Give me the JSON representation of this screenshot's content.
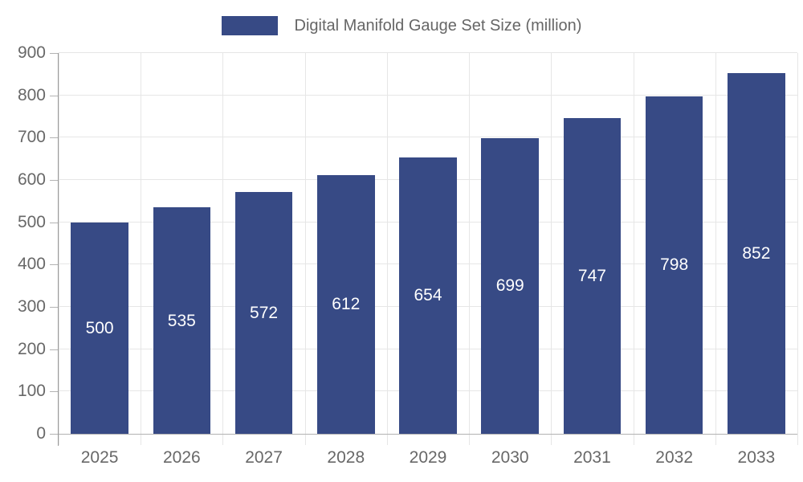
{
  "chart_data": {
    "type": "bar",
    "title": "",
    "legend_label": "Digital Manifold Gauge Set Size (million)",
    "legend_position": "top-center",
    "categories": [
      "2025",
      "2026",
      "2027",
      "2028",
      "2029",
      "2030",
      "2031",
      "2032",
      "2033"
    ],
    "series": [
      {
        "name": "Digital Manifold Gauge Set Size (million)",
        "values": [
          500,
          535,
          572,
          612,
          654,
          699,
          747,
          798,
          852
        ]
      }
    ],
    "bar_value_labels": [
      "500",
      "535",
      "572",
      "612",
      "654",
      "699",
      "747",
      "798",
      "852"
    ],
    "xlabel": "",
    "ylabel": "",
    "ylim": [
      0,
      900
    ],
    "ytick_step": 100,
    "yticks": [
      0,
      100,
      200,
      300,
      400,
      500,
      600,
      700,
      800,
      900
    ],
    "ytick_labels": [
      "0",
      "100",
      "200",
      "300",
      "400",
      "500",
      "600",
      "700",
      "800",
      "900"
    ],
    "grid": "horizontal lines at each y tick plus vertical lines at category boundaries",
    "colors": {
      "bar": "#374a85",
      "gridline": "#e6e6e6",
      "y_axis_line": "#9a9a9a",
      "x_axis_line": "#b3b3b3",
      "tick": "#b3b3b3",
      "axis_text": "#686868",
      "legend_text": "#666666",
      "bar_label_text": "#ffffff",
      "background": "#ffffff"
    }
  }
}
